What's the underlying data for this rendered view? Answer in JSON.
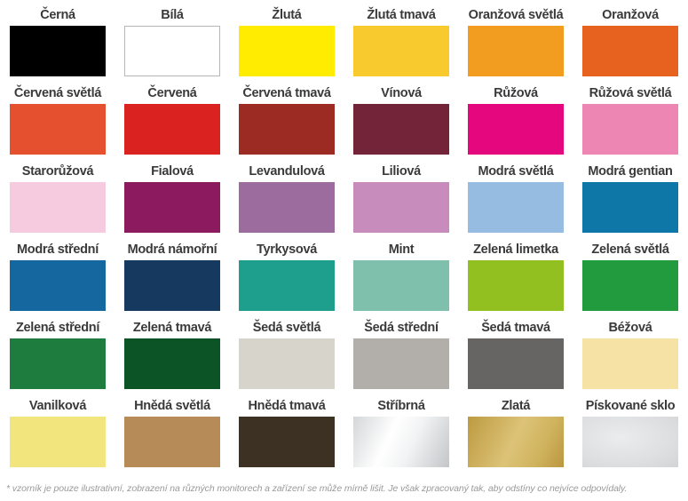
{
  "chart_data": {
    "type": "table",
    "title": "",
    "columns": 6,
    "rows": 6,
    "swatches": [
      {
        "label": "Černá",
        "color": "#000000"
      },
      {
        "label": "Bílá",
        "color": "#ffffff",
        "border": "#b6b6b6"
      },
      {
        "label": "Žlutá",
        "color": "#ffec00"
      },
      {
        "label": "Žlutá tmavá",
        "color": "#f9ca2e"
      },
      {
        "label": "Oranžová světlá",
        "color": "#f39d20"
      },
      {
        "label": "Oranžová",
        "color": "#e7611f"
      },
      {
        "label": "Červená světlá",
        "color": "#e5512f"
      },
      {
        "label": "Červená",
        "color": "#da2221"
      },
      {
        "label": "Červená tmavá",
        "color": "#9b2b23"
      },
      {
        "label": "Vínová",
        "color": "#732439"
      },
      {
        "label": "Růžová",
        "color": "#e5077e"
      },
      {
        "label": "Růžová světlá",
        "color": "#ee86b4"
      },
      {
        "label": "Starorůžová",
        "color": "#f6cadf"
      },
      {
        "label": "Fialová",
        "color": "#8c1a5f"
      },
      {
        "label": "Levandulová",
        "color": "#9c6c9e"
      },
      {
        "label": "Liliová",
        "color": "#c78cbb"
      },
      {
        "label": "Modrá světlá",
        "color": "#96bce2"
      },
      {
        "label": "Modrá gentian",
        "color": "#0f76a8"
      },
      {
        "label": "Modrá střední",
        "color": "#15689f"
      },
      {
        "label": "Modrá námořní",
        "color": "#16395f"
      },
      {
        "label": "Tyrkysová",
        "color": "#1e9e8c"
      },
      {
        "label": "Mint",
        "color": "#7fc0ac"
      },
      {
        "label": "Zelená limetka",
        "color": "#92c021"
      },
      {
        "label": "Zelená světlá",
        "color": "#219b3e"
      },
      {
        "label": "Zelená střední",
        "color": "#1e7c3f"
      },
      {
        "label": "Zelená tmavá",
        "color": "#0c5426"
      },
      {
        "label": "Šedá světlá",
        "color": "#d7d4cc"
      },
      {
        "label": "Šedá střední",
        "color": "#b2afaa"
      },
      {
        "label": "Šedá tmavá",
        "color": "#676563"
      },
      {
        "label": "Béžová",
        "color": "#f6e2a4"
      },
      {
        "label": "Vanilková",
        "color": "#f3e57e"
      },
      {
        "label": "Hnědá světlá",
        "color": "#b68b57"
      },
      {
        "label": "Hnědá tmavá",
        "color": "#3c3122"
      },
      {
        "label": "Stříbrná",
        "gradient": {
          "kind": "linear",
          "angle": 115,
          "stops": [
            [
              "#d4d6d8",
              0
            ],
            [
              "#ffffff",
              38
            ],
            [
              "#f2f3f4",
              60
            ],
            [
              "#c3c5c8",
              100
            ]
          ]
        }
      },
      {
        "label": "Zlatá",
        "gradient": {
          "kind": "linear",
          "angle": 115,
          "stops": [
            [
              "#bd9a41",
              0
            ],
            [
              "#dcc377",
              48
            ],
            [
              "#d0b35e",
              75
            ],
            [
              "#bb9640",
              100
            ]
          ]
        }
      },
      {
        "label": "Pískované sklo",
        "gradient": {
          "kind": "radial",
          "at": "40% 42%",
          "stops": [
            [
              "#ebeced",
              0
            ],
            [
              "#dddee0",
              65
            ],
            [
              "#d3d4d6",
              100
            ]
          ]
        }
      }
    ]
  },
  "footnote": "* vzorník je pouze ilustrativní, zobrazení na různých monitorech a zařízení se může mírně lišit. Je však zpracovaný tak, aby odstíny co nejvíce odpovídaly."
}
